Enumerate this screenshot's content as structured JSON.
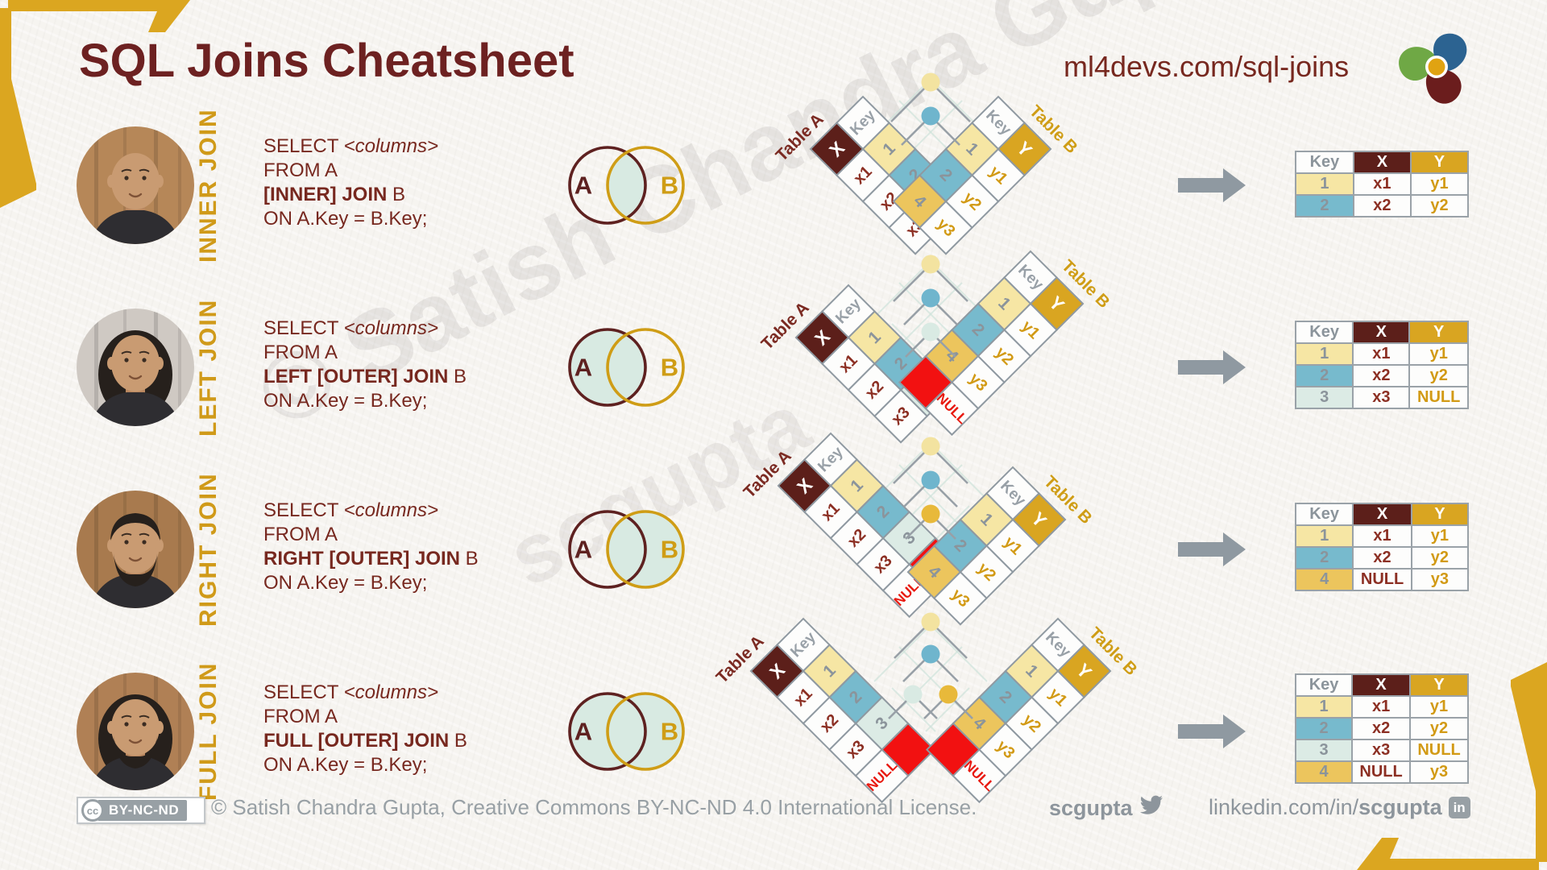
{
  "header": {
    "title": "SQL Joins Cheatsheet",
    "url": "ml4devs.com/sql-joins",
    "logo": "ml4devs-pinwheel-logo"
  },
  "sql_common": {
    "select": "SELECT",
    "columns": "<columns>",
    "from": "FROM A",
    "b_suffix": "B",
    "on": "ON A.Key = B.Key;"
  },
  "rows": [
    {
      "id": "inner",
      "label": "INNER JOIN",
      "join_bold": "[INNER] JOIN",
      "avatar": "bald-man",
      "venn": "intersection",
      "nulls": {
        "a": false,
        "b": false
      },
      "result": [
        [
          "1",
          "x1",
          "y1"
        ],
        [
          "2",
          "x2",
          "y2"
        ]
      ]
    },
    {
      "id": "left",
      "label": "LEFT JOIN",
      "join_bold": "LEFT [OUTER] JOIN",
      "avatar": "long-hair-man",
      "venn": "left",
      "nulls": {
        "a": false,
        "b": true
      },
      "result": [
        [
          "1",
          "x1",
          "y1"
        ],
        [
          "2",
          "x2",
          "y2"
        ],
        [
          "3",
          "x3",
          "NULL"
        ]
      ]
    },
    {
      "id": "right",
      "label": "RIGHT JOIN",
      "join_bold": "RIGHT [OUTER] JOIN",
      "avatar": "short-beard-man",
      "venn": "right",
      "nulls": {
        "a": true,
        "b": false
      },
      "result": [
        [
          "1",
          "x1",
          "y1"
        ],
        [
          "2",
          "x2",
          "y2"
        ],
        [
          "4",
          "NULL",
          "y3"
        ]
      ]
    },
    {
      "id": "full",
      "label": "FULL JOIN",
      "join_bold": "FULL [OUTER] JOIN",
      "avatar": "long-hair-beard-man",
      "venn": "both",
      "nulls": {
        "a": true,
        "b": true
      },
      "result": [
        [
          "1",
          "x1",
          "y1"
        ],
        [
          "2",
          "x2",
          "y2"
        ],
        [
          "3",
          "x3",
          "NULL"
        ],
        [
          "4",
          "NULL",
          "y3"
        ]
      ]
    }
  ],
  "table_a": {
    "label": "Table A",
    "header": "X",
    "key_label": "Key",
    "keys": [
      "1",
      "2",
      "3"
    ],
    "values": [
      "x1",
      "x2",
      "x3"
    ],
    "null_text": "NULL"
  },
  "table_b": {
    "label": "Table B",
    "header": "Y",
    "key_label": "Key",
    "keys": [
      "1",
      "2",
      "4"
    ],
    "values": [
      "y1",
      "y2",
      "y3"
    ],
    "null_text": "NULL"
  },
  "venn": {
    "a": "A",
    "b": "B"
  },
  "result_table": {
    "headers": [
      "Key",
      "X",
      "Y"
    ]
  },
  "watermark": {
    "line1": "© Satish Chandra Gupta",
    "line2": "scgupta"
  },
  "footer": {
    "cc_icon": "cc",
    "cc_badge": "BY-NC-ND",
    "license": "© Satish Chandra Gupta, Creative Commons BY-NC-ND 4.0 International License.",
    "twitter_handle": "scgupta",
    "twitter_icon": "twitter-bird-icon",
    "linkedin_prefix": "linkedin.com/in/",
    "linkedin_handle": "scgupta",
    "linkedin_icon": "linkedin-icon"
  },
  "colors": {
    "maroon": "#6d2121",
    "sql_text": "#77281f",
    "gold": "#d09a19",
    "key1": "#f6e6a4",
    "key2": "#77bacd",
    "key3": "#dcebe5",
    "key4": "#ecc55d",
    "red": "#f21111",
    "cell_border": "#8f99a1",
    "cell_white": "#fdfdfc",
    "x_header_bg": "#5c1f1a",
    "y_header_bg": "#d9a521",
    "key_text": "#8b949b",
    "key_label_text": "#98a0a7",
    "x_text": "#8c2f23",
    "y_text": "#d29a15",
    "null_text": "#e8180e",
    "table_a_label": "#7b2a22",
    "table_b_label": "#cf9d16",
    "dot_yellow": "#f3e3a0",
    "dot_blue": "#6fb5cd",
    "dot_teal": "#d9eae3",
    "dot_gold": "#e8b93a",
    "lattice": "#cfe3db",
    "line_gray": "#98a0a7",
    "arrow": "#8f99a1",
    "venn_a_stroke": "#5e2120",
    "venn_b_stroke": "#cf9d16",
    "venn_fill": "#d8eae2",
    "footer_gray": "#98a0a5",
    "result_border": "#9aa2a8",
    "corner": "#dba620",
    "logo_green": "#6fa845",
    "logo_blue": "#2c6391",
    "logo_maroon": "#6b1d1d",
    "logo_gold": "#e0a312"
  }
}
